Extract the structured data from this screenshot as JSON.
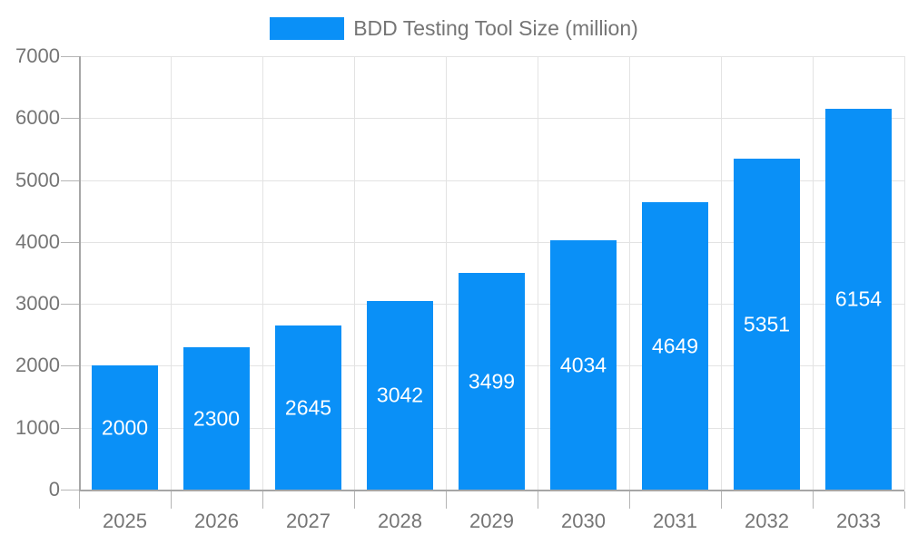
{
  "legend": {
    "label": "BDD Testing Tool Size (million)",
    "position": "top-center"
  },
  "colors": {
    "bar": "#0a90f7",
    "grid": "#e3e3e3",
    "axis": "#a6a6a6",
    "tick": "#b5b5b5",
    "axis_text": "#757575",
    "bar_label_text": "#ffffff",
    "background": "#ffffff"
  },
  "chart_data": {
    "type": "bar",
    "title": "BDD Testing Tool Size (million)",
    "categories": [
      "2025",
      "2026",
      "2027",
      "2028",
      "2029",
      "2030",
      "2031",
      "2032",
      "2033"
    ],
    "values": [
      2000,
      2300,
      2645,
      3042,
      3499,
      4034,
      4649,
      5351,
      6154
    ],
    "series": [
      {
        "name": "BDD Testing Tool Size (million)",
        "values": [
          2000,
          2300,
          2645,
          3042,
          3499,
          4034,
          4649,
          5351,
          6154
        ]
      }
    ],
    "xlabel": "",
    "ylabel": "",
    "ylim": [
      0,
      7000
    ],
    "ytick_step": 1000,
    "yticks": [
      0,
      1000,
      2000,
      3000,
      4000,
      5000,
      6000,
      7000
    ],
    "grid": true,
    "legend_position": "top",
    "value_label_position": "inside-center"
  }
}
